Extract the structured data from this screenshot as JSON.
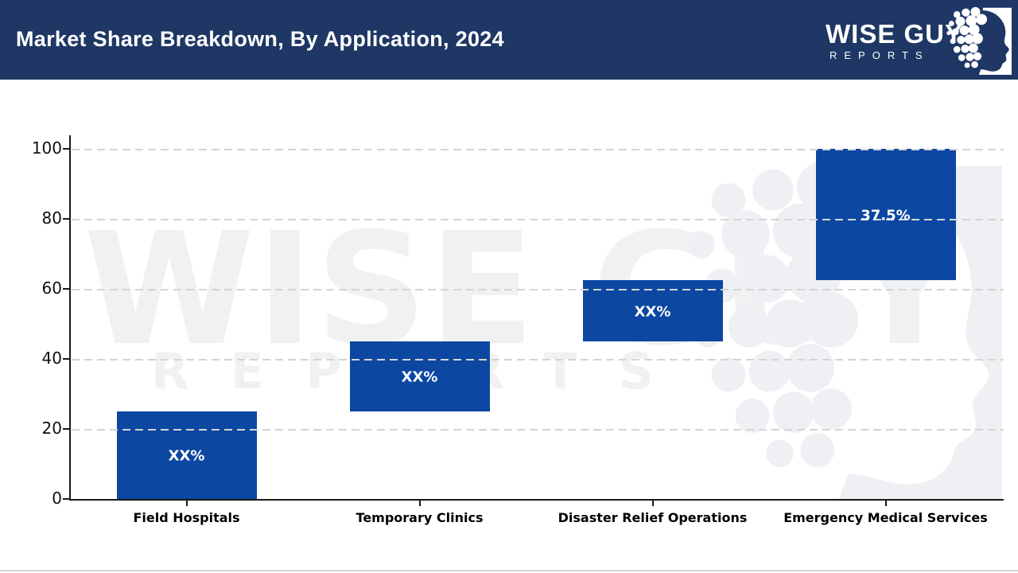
{
  "header": {
    "title": "Market Share Breakdown, By Application, 2024",
    "logo": {
      "name": "WISE GUY",
      "sub": "REPORTS"
    }
  },
  "watermark": {
    "name": "WISE GUY",
    "sub": "REPORTS"
  },
  "chart_data": {
    "type": "bar",
    "subtype": "floating-segment-waterfall",
    "title": "Market Share Breakdown, By Application, 2024",
    "categories": [
      "Field Hospitals",
      "Temporary Clinics",
      "Disaster Relief Operations",
      "Emergency Medical Services"
    ],
    "segments": [
      [
        0,
        25
      ],
      [
        25,
        45
      ],
      [
        45,
        62.5
      ],
      [
        62.5,
        100
      ]
    ],
    "segment_sizes_pct": [
      25,
      20,
      17.5,
      37.5
    ],
    "bar_labels": [
      "XX%",
      "XX%",
      "XX%",
      "37.5%"
    ],
    "ylim": [
      0,
      100
    ],
    "yticks": [
      0,
      20,
      40,
      60,
      80,
      100
    ],
    "xlabel": "",
    "ylabel": "",
    "grid": "horizontal-dashed",
    "legend": "none",
    "bar_color": "#0c47a2"
  },
  "colors": {
    "header_bg": "#1f3765",
    "bar": "#0c47a2",
    "watermark": "#f0f1f3",
    "grid": "#d4d4d4",
    "axis": "#1a1a1a",
    "bottom_rule": "#d6d6d6"
  }
}
